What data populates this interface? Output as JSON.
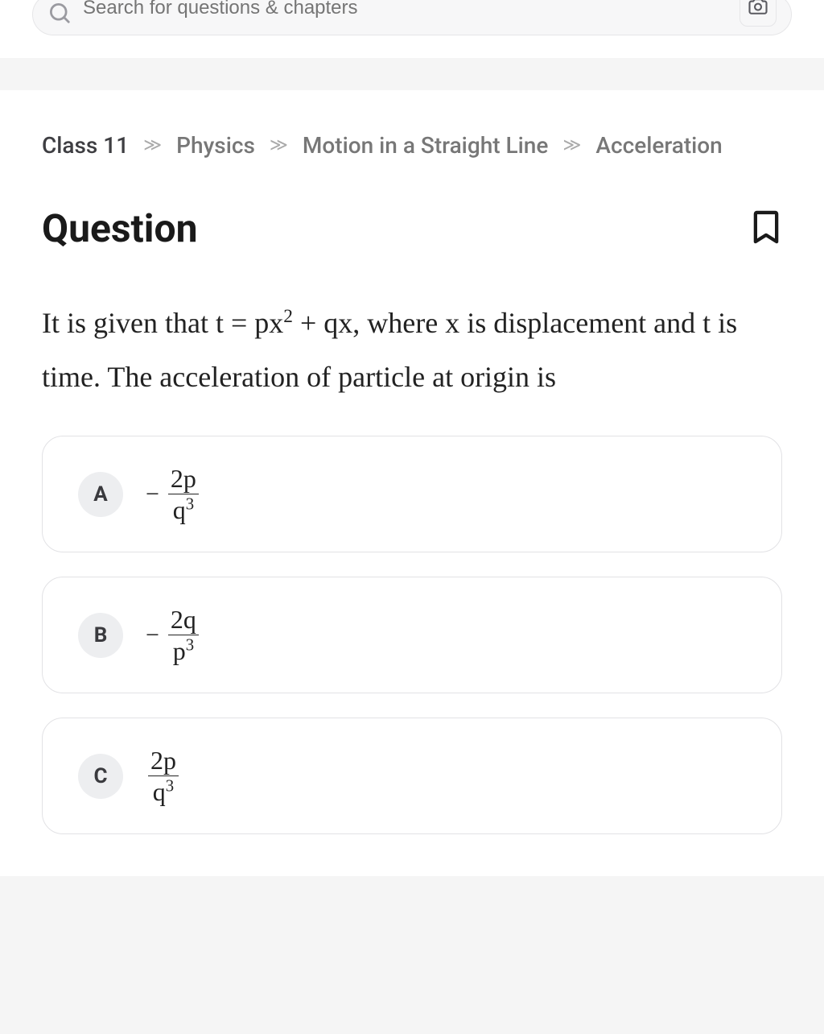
{
  "search": {
    "placeholder": "Search for questions & chapters"
  },
  "breadcrumb": {
    "items": [
      "Class 11",
      "Physics",
      "Motion in a Straight Line",
      "Acceleration"
    ]
  },
  "question": {
    "heading": "Question",
    "text_html": "It is given that t = px<sup>2</sup> + qx, where x is displacement and t is time. The acceleration of particle at origin is"
  },
  "options": [
    {
      "letter": "A",
      "sign": "−",
      "num": "2p",
      "den_base": "q",
      "den_exp": "3"
    },
    {
      "letter": "B",
      "sign": "−",
      "num": "2q",
      "den_base": "p",
      "den_exp": "3"
    },
    {
      "letter": "C",
      "sign": "",
      "num": "2p",
      "den_base": "q",
      "den_exp": "3"
    }
  ],
  "colors": {
    "page_bg": "#f5f5f5",
    "panel_bg": "#ffffff",
    "border": "#e2e2e5",
    "text": "#222222",
    "muted": "#777777"
  }
}
